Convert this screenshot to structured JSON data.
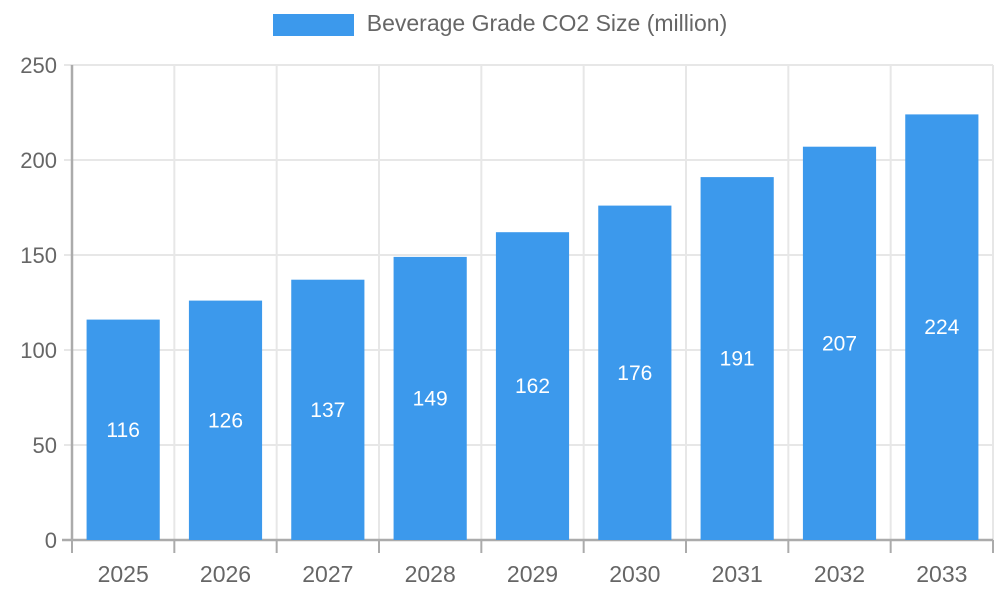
{
  "legend": {
    "label": "Beverage Grade CO2 Size (million)",
    "position": "top"
  },
  "chart_data": {
    "type": "bar",
    "title": "",
    "xlabel": "",
    "ylabel": "",
    "categories": [
      "2025",
      "2026",
      "2027",
      "2028",
      "2029",
      "2030",
      "2031",
      "2032",
      "2033"
    ],
    "series": [
      {
        "name": "Beverage Grade CO2 Size (million)",
        "values": [
          116,
          126,
          137,
          149,
          162,
          176,
          191,
          207,
          224
        ]
      }
    ],
    "ylim": [
      0,
      250
    ],
    "yticks": [
      0,
      50,
      100,
      150,
      200,
      250
    ],
    "grid": true,
    "legend_position": "top",
    "colors": {
      "bar": "#3C99EC",
      "bar_value_label": "#FFFFFF",
      "grid": "#E7E7E7",
      "axis": "#ABABAB",
      "tick_text": "#666666",
      "legend_text": "#666666"
    }
  }
}
